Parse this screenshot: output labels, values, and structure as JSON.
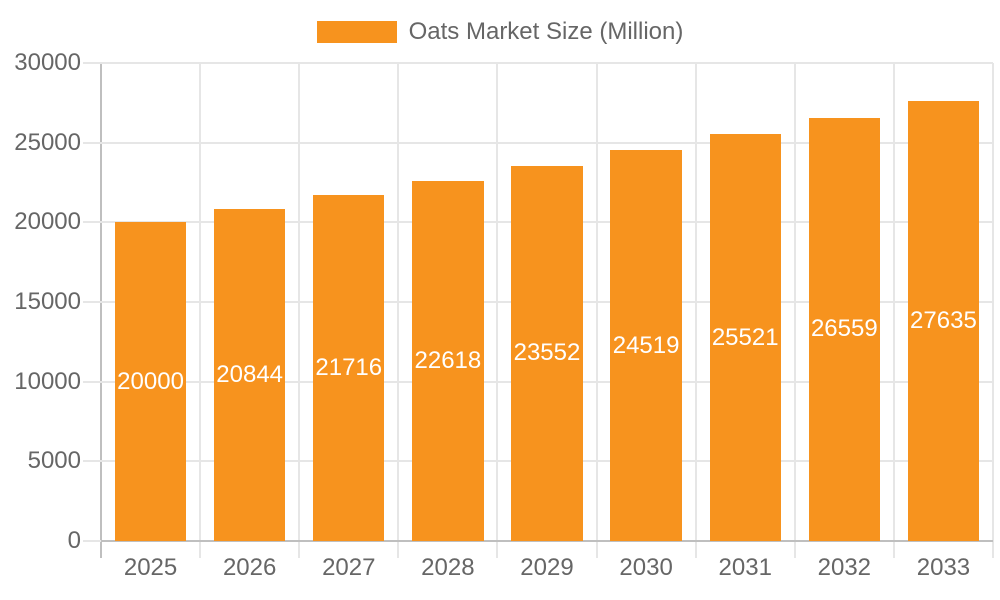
{
  "legend": {
    "label": "Oats Market Size (Million)"
  },
  "chart_data": {
    "type": "bar",
    "title": "Oats Market Size (Million)",
    "categories": [
      "2025",
      "2026",
      "2027",
      "2028",
      "2029",
      "2030",
      "2031",
      "2032",
      "2033"
    ],
    "values": [
      20000,
      20844,
      21716,
      22618,
      23552,
      24519,
      25521,
      26559,
      27635
    ],
    "series": [
      {
        "name": "Oats Market Size (Million)",
        "values": [
          20000,
          20844,
          21716,
          22618,
          23552,
          24519,
          25521,
          26559,
          27635
        ]
      }
    ],
    "xlabel": "",
    "ylabel": "",
    "ylim": [
      0,
      30000
    ],
    "yticks": [
      0,
      5000,
      10000,
      15000,
      20000,
      25000,
      30000
    ],
    "grid": true,
    "legend_position": "top",
    "bar_label_position": "center-inside",
    "bar_color": "#f7931e",
    "bar_label_color": "#ffffff",
    "axis_text_color": "#666666",
    "gridline_color": "#e6e6e6",
    "axis_line_color": "#bfbfbf"
  }
}
